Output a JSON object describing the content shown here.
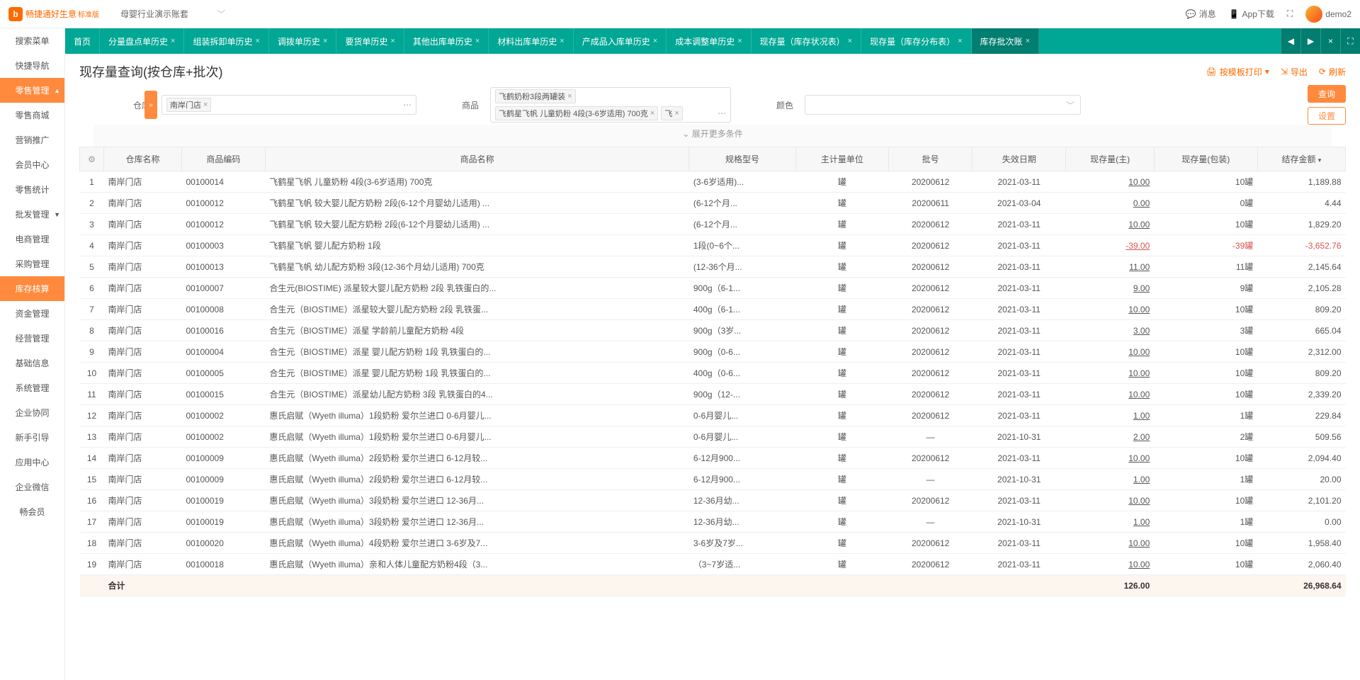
{
  "brand": {
    "name": "畅捷通好生意",
    "edition": "标准版"
  },
  "account_selector": "母婴行业演示账套",
  "topbar": {
    "message": "消息",
    "download": "App下载",
    "user": "demo2"
  },
  "sidebar": {
    "items": [
      {
        "label": "搜索菜单"
      },
      {
        "label": "快捷导航"
      },
      {
        "label": "零售管理",
        "active": true,
        "expand": "▲"
      },
      {
        "label": "零售商城"
      },
      {
        "label": "营销推广"
      },
      {
        "label": "会员中心"
      },
      {
        "label": "零售统计"
      },
      {
        "label": "批发管理",
        "expand": "▼"
      },
      {
        "label": "电商管理"
      },
      {
        "label": "采购管理"
      },
      {
        "label": "库存核算",
        "active": true
      },
      {
        "label": "资金管理"
      },
      {
        "label": "经营管理"
      },
      {
        "label": "基础信息"
      },
      {
        "label": "系统管理"
      },
      {
        "label": "企业协同"
      },
      {
        "label": "新手引导"
      },
      {
        "label": "应用中心"
      },
      {
        "label": "企业微信"
      },
      {
        "label": "畅会员"
      }
    ]
  },
  "tabs": [
    {
      "label": "首页",
      "closable": false
    },
    {
      "label": "分量盘点单历史",
      "closable": true
    },
    {
      "label": "组装拆卸单历史",
      "closable": true
    },
    {
      "label": "调拨单历史",
      "closable": true
    },
    {
      "label": "要货单历史",
      "closable": true
    },
    {
      "label": "其他出库单历史",
      "closable": true
    },
    {
      "label": "材料出库单历史",
      "closable": true
    },
    {
      "label": "产成品入库单历史",
      "closable": true
    },
    {
      "label": "成本调整单历史",
      "closable": true
    },
    {
      "label": "现存量（库存状况表）",
      "closable": true
    },
    {
      "label": "现存量（库存分布表）",
      "closable": true
    },
    {
      "label": "库存批次账",
      "closable": true,
      "active": true
    }
  ],
  "page": {
    "title": "现存量查询(按仓库+批次)",
    "actions": {
      "print": "按模板打印",
      "export": "导出",
      "refresh": "刷新"
    }
  },
  "filters": {
    "warehouse_label": "仓库",
    "warehouse_tags": [
      "南岸门店"
    ],
    "product_label": "商品",
    "product_tags": [
      "飞鹤奶粉3段两罐装",
      "飞鹤星飞帆 儿童奶粉 4段(3-6岁适用) 700克",
      "飞"
    ],
    "color_label": "颜色",
    "query": "查询",
    "settings": "设置",
    "expand_more": "展开更多条件"
  },
  "table": {
    "columns": [
      "",
      "仓库名称",
      "商品编码",
      "商品名称",
      "规格型号",
      "主计量单位",
      "批号",
      "失效日期",
      "现存量(主)",
      "现存量(包装)",
      "结存金额"
    ],
    "rows": [
      [
        "1",
        "南岸门店",
        "00100014",
        "飞鹤星飞帆 儿童奶粉 4段(3-6岁适用) 700克",
        "(3-6岁适用)...",
        "罐",
        "20200612",
        "2021-03-11",
        "10.00",
        "10罐",
        "1,189.88"
      ],
      [
        "2",
        "南岸门店",
        "00100012",
        "飞鹤星飞帆 较大婴儿配方奶粉 2段(6-12个月婴幼儿适用) ...",
        "(6-12个月...",
        "罐",
        "20200611",
        "2021-03-04",
        "0.00",
        "0罐",
        "4.44"
      ],
      [
        "3",
        "南岸门店",
        "00100012",
        "飞鹤星飞帆 较大婴儿配方奶粉 2段(6-12个月婴幼儿适用) ...",
        "(6-12个月...",
        "罐",
        "20200612",
        "2021-03-11",
        "10.00",
        "10罐",
        "1,829.20"
      ],
      [
        "4",
        "南岸门店",
        "00100003",
        "飞鹤星飞帆 婴儿配方奶粉 1段",
        "1段(0~6个...",
        "罐",
        "20200612",
        "2021-03-11",
        "-39.00",
        "-39罐",
        "-3,652.76"
      ],
      [
        "5",
        "南岸门店",
        "00100013",
        "飞鹤星飞帆 幼儿配方奶粉 3段(12-36个月幼儿适用) 700克",
        "(12-36个月...",
        "罐",
        "20200612",
        "2021-03-11",
        "11.00",
        "11罐",
        "2,145.64"
      ],
      [
        "6",
        "南岸门店",
        "00100007",
        "合生元(BIOSTIME) 派星较大婴儿配方奶粉 2段 乳铁蛋白的...",
        "900g（6-1...",
        "罐",
        "20200612",
        "2021-03-11",
        "9.00",
        "9罐",
        "2,105.28"
      ],
      [
        "7",
        "南岸门店",
        "00100008",
        "合生元（BIOSTIME）派星较大婴儿配方奶粉 2段 乳铁蛋...",
        "400g（6-1...",
        "罐",
        "20200612",
        "2021-03-11",
        "10.00",
        "10罐",
        "809.20"
      ],
      [
        "8",
        "南岸门店",
        "00100016",
        "合生元（BIOSTIME）派星 学龄前儿童配方奶粉 4段",
        "900g（3岁...",
        "罐",
        "20200612",
        "2021-03-11",
        "3.00",
        "3罐",
        "665.04"
      ],
      [
        "9",
        "南岸门店",
        "00100004",
        "合生元（BIOSTIME）派星 婴儿配方奶粉 1段 乳铁蛋白的...",
        "900g（0-6...",
        "罐",
        "20200612",
        "2021-03-11",
        "10.00",
        "10罐",
        "2,312.00"
      ],
      [
        "10",
        "南岸门店",
        "00100005",
        "合生元（BIOSTIME）派星 婴儿配方奶粉 1段 乳铁蛋白的...",
        "400g（0-6...",
        "罐",
        "20200612",
        "2021-03-11",
        "10.00",
        "10罐",
        "809.20"
      ],
      [
        "11",
        "南岸门店",
        "00100015",
        "合生元（BIOSTIME）派星幼儿配方奶粉 3段 乳铁蛋白的4...",
        "900g（12-...",
        "罐",
        "20200612",
        "2021-03-11",
        "10.00",
        "10罐",
        "2,339.20"
      ],
      [
        "12",
        "南岸门店",
        "00100002",
        "惠氏启赋（Wyeth illuma）1段奶粉 爱尔兰进口 0-6月婴儿...",
        "0-6月婴儿...",
        "罐",
        "20200612",
        "2021-03-11",
        "1.00",
        "1罐",
        "229.84"
      ],
      [
        "13",
        "南岸门店",
        "00100002",
        "惠氏启赋（Wyeth illuma）1段奶粉 爱尔兰进口 0-6月婴儿...",
        "0-6月婴儿...",
        "罐",
        "—",
        "2021-10-31",
        "2.00",
        "2罐",
        "509.56"
      ],
      [
        "14",
        "南岸门店",
        "00100009",
        "惠氏启赋（Wyeth illuma）2段奶粉 爱尔兰进口 6-12月较...",
        "6-12月900...",
        "罐",
        "20200612",
        "2021-03-11",
        "10.00",
        "10罐",
        "2,094.40"
      ],
      [
        "15",
        "南岸门店",
        "00100009",
        "惠氏启赋（Wyeth illuma）2段奶粉 爱尔兰进口 6-12月较...",
        "6-12月900...",
        "罐",
        "—",
        "2021-10-31",
        "1.00",
        "1罐",
        "20.00"
      ],
      [
        "16",
        "南岸门店",
        "00100019",
        "惠氏启赋（Wyeth illuma）3段奶粉 爱尔兰进口 12-36月...",
        "12-36月幼...",
        "罐",
        "20200612",
        "2021-03-11",
        "10.00",
        "10罐",
        "2,101.20"
      ],
      [
        "17",
        "南岸门店",
        "00100019",
        "惠氏启赋（Wyeth illuma）3段奶粉 爱尔兰进口 12-36月...",
        "12-36月幼...",
        "罐",
        "—",
        "2021-10-31",
        "1.00",
        "1罐",
        "0.00"
      ],
      [
        "18",
        "南岸门店",
        "00100020",
        "惠氏启赋（Wyeth illuma）4段奶粉 爱尔兰进口 3-6岁及7...",
        "3-6岁及7岁...",
        "罐",
        "20200612",
        "2021-03-11",
        "10.00",
        "10罐",
        "1,958.40"
      ],
      [
        "19",
        "南岸门店",
        "00100018",
        "惠氏启赋（Wyeth illuma）亲和人体儿童配方奶粉4段（3...",
        "（3~7岁适...",
        "罐",
        "20200612",
        "2021-03-11",
        "10.00",
        "10罐",
        "2,060.40"
      ]
    ],
    "total_label": "合计",
    "total_qty": "126.00",
    "total_amount": "26,968.64"
  }
}
